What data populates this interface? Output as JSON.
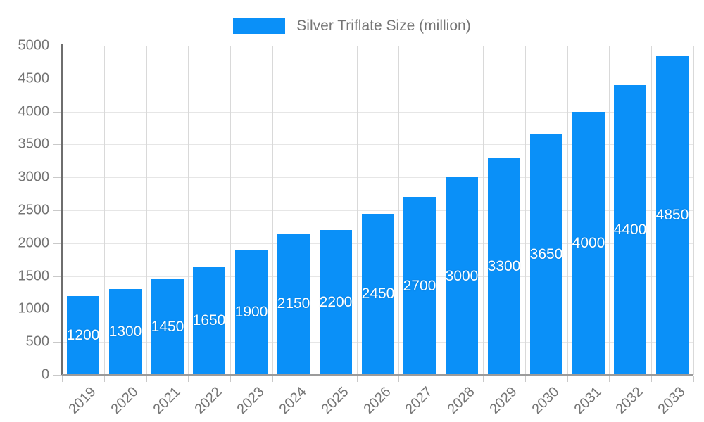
{
  "chart_data": {
    "type": "bar",
    "title": "",
    "xlabel": "",
    "ylabel": "",
    "legend": {
      "position": "top-center",
      "label": "Silver Triflate Size (million)"
    },
    "categories": [
      "2019",
      "2020",
      "2021",
      "2022",
      "2023",
      "2024",
      "2025",
      "2026",
      "2027",
      "2028",
      "2029",
      "2030",
      "2031",
      "2032",
      "2033"
    ],
    "series": [
      {
        "name": "Silver Triflate Size (million)",
        "values": [
          1200,
          1300,
          1450,
          1650,
          1900,
          2150,
          2200,
          2450,
          2700,
          3000,
          3300,
          3650,
          4000,
          4400,
          4850
        ]
      }
    ],
    "ylim": [
      0,
      5000
    ],
    "ytick_interval": 500,
    "ytick_labels": [
      "0",
      "500",
      "1000",
      "1500",
      "2000",
      "2500",
      "3000",
      "3500",
      "4000",
      "4500",
      "5000"
    ],
    "grid": "on",
    "bar_value_labels": "inside-middle",
    "x_label_rotation_deg": -45
  },
  "colors": {
    "bar": "#0a90f8",
    "bar_label": "#ffffff",
    "axis_text": "#757575",
    "legend_text": "#757575",
    "grid_h": "#e6e6e6",
    "grid_v": "#d9d9d9",
    "axis_line_left": "#6e6e6e",
    "axis_line_bottom": "#9b9b9b",
    "tick": "#c9c9c9",
    "background": "#ffffff"
  }
}
